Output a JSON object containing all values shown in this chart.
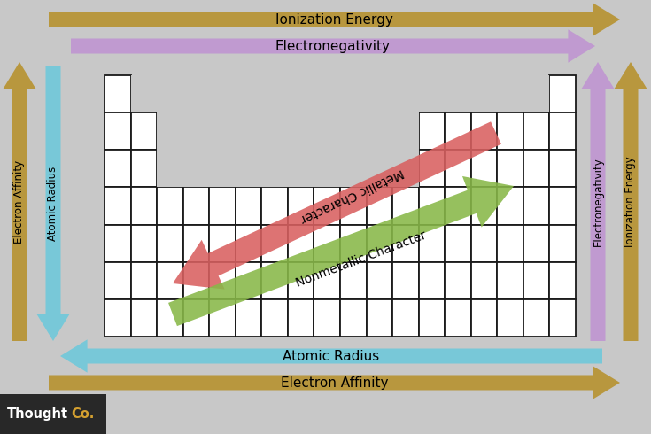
{
  "bg_color": "#c8c8c8",
  "table_bg": "#ffffff",
  "grid_color": "#1a1a1a",
  "arrow_colors": {
    "ionization_energy_top": "#b8973e",
    "electronegativity_top": "#c09ad0",
    "atomic_radius_bottom": "#78c8d8",
    "electron_affinity_bottom": "#b8973e",
    "electron_affinity_left": "#b8973e",
    "atomic_radius_left": "#78c8d8",
    "electronegativity_right": "#c09ad0",
    "ionization_energy_right": "#b8973e",
    "metallic": "#d96060",
    "nonmetallic": "#88b848"
  },
  "labels": {
    "ionization_energy_top": "Ionization Energy",
    "electronegativity_top": "Electronegativity",
    "atomic_radius_bottom": "Atomic Radius",
    "electron_affinity_bottom": "Electron Affinity",
    "electron_affinity_left": "Electron Affinity",
    "atomic_radius_left": "Atomic Radius",
    "electronegativity_right": "Electronegativity",
    "ionization_energy_right": "Ionization Energy",
    "metallic": "Metallic Character",
    "nonmetallic": "Nonmetallic Character"
  },
  "thoughtco_bg": "#282828",
  "fig_width": 7.35,
  "fig_height": 4.9,
  "dpi": 100
}
